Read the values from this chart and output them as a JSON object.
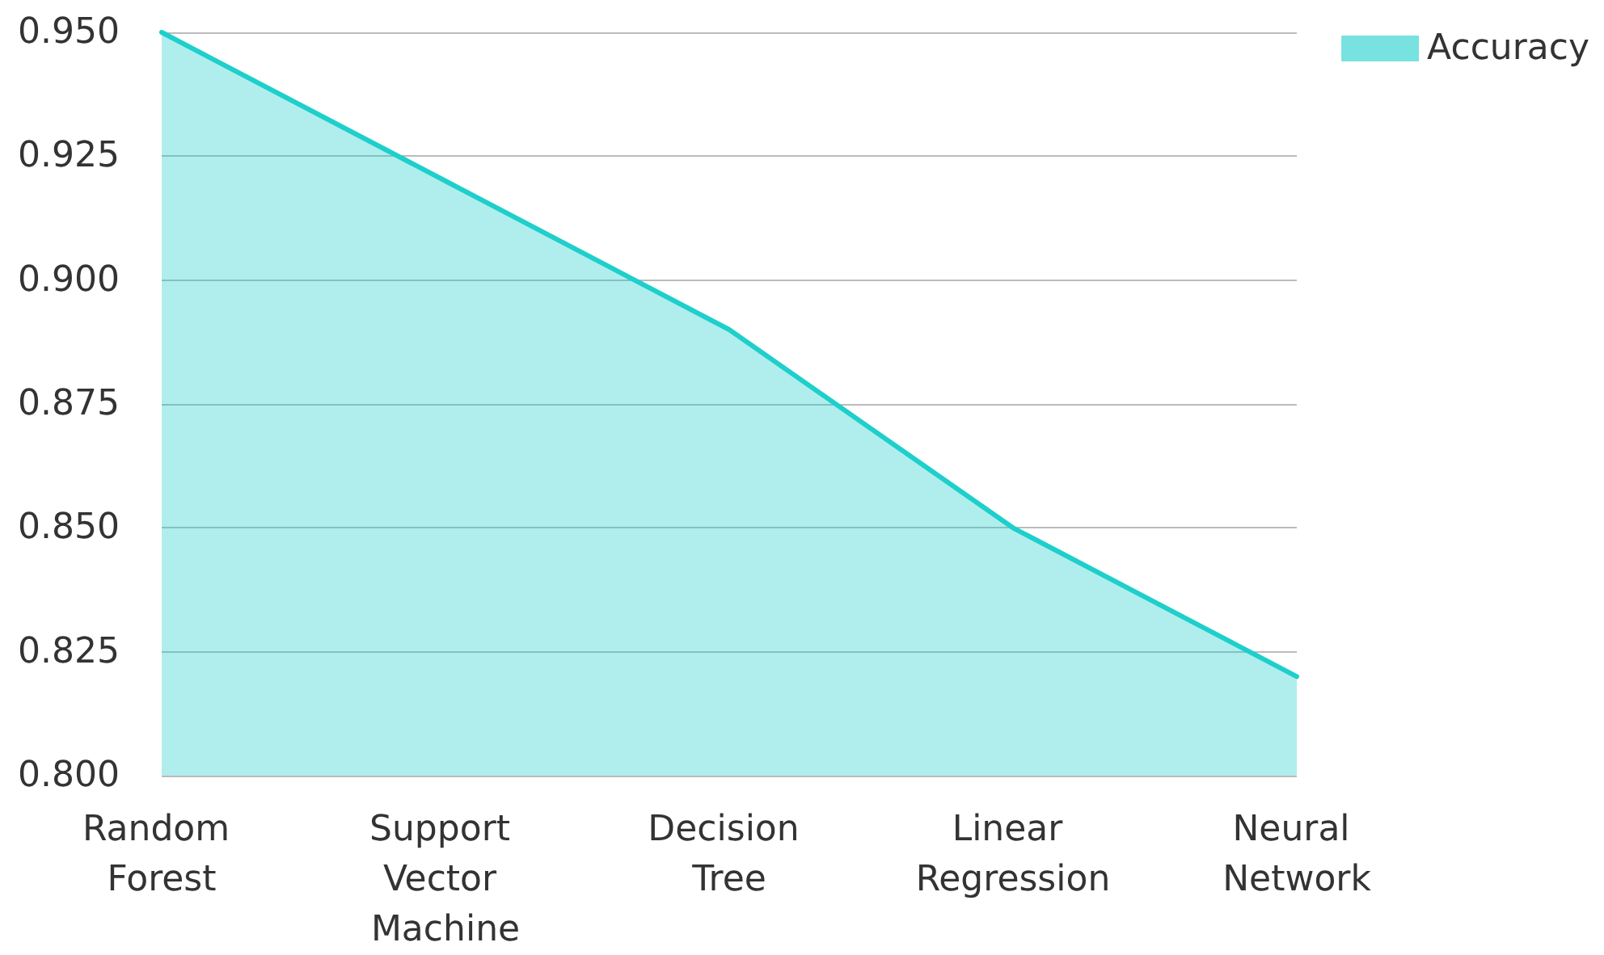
{
  "chart_data": {
    "type": "area",
    "categories": [
      "Random Forest",
      "Support Vector Machine",
      "Decision Tree",
      "Linear Regression",
      "Neural Network"
    ],
    "series": [
      {
        "name": "Accuracy",
        "color": "#1ecfcc",
        "values": [
          0.95,
          0.92,
          0.89,
          0.85,
          0.82
        ]
      }
    ],
    "ylim": [
      0.8,
      0.95
    ],
    "yticks": [
      {
        "value": 0.8,
        "label": "0.800"
      },
      {
        "value": 0.825,
        "label": "0.825"
      },
      {
        "value": 0.85,
        "label": "0.850"
      },
      {
        "value": 0.875,
        "label": "0.875"
      },
      {
        "value": 0.9,
        "label": "0.900"
      },
      {
        "value": 0.925,
        "label": "0.925"
      },
      {
        "value": 0.95,
        "label": "0.950"
      }
    ],
    "grid": "y",
    "legend": "top right",
    "marker": "none",
    "line_style": "solid"
  }
}
